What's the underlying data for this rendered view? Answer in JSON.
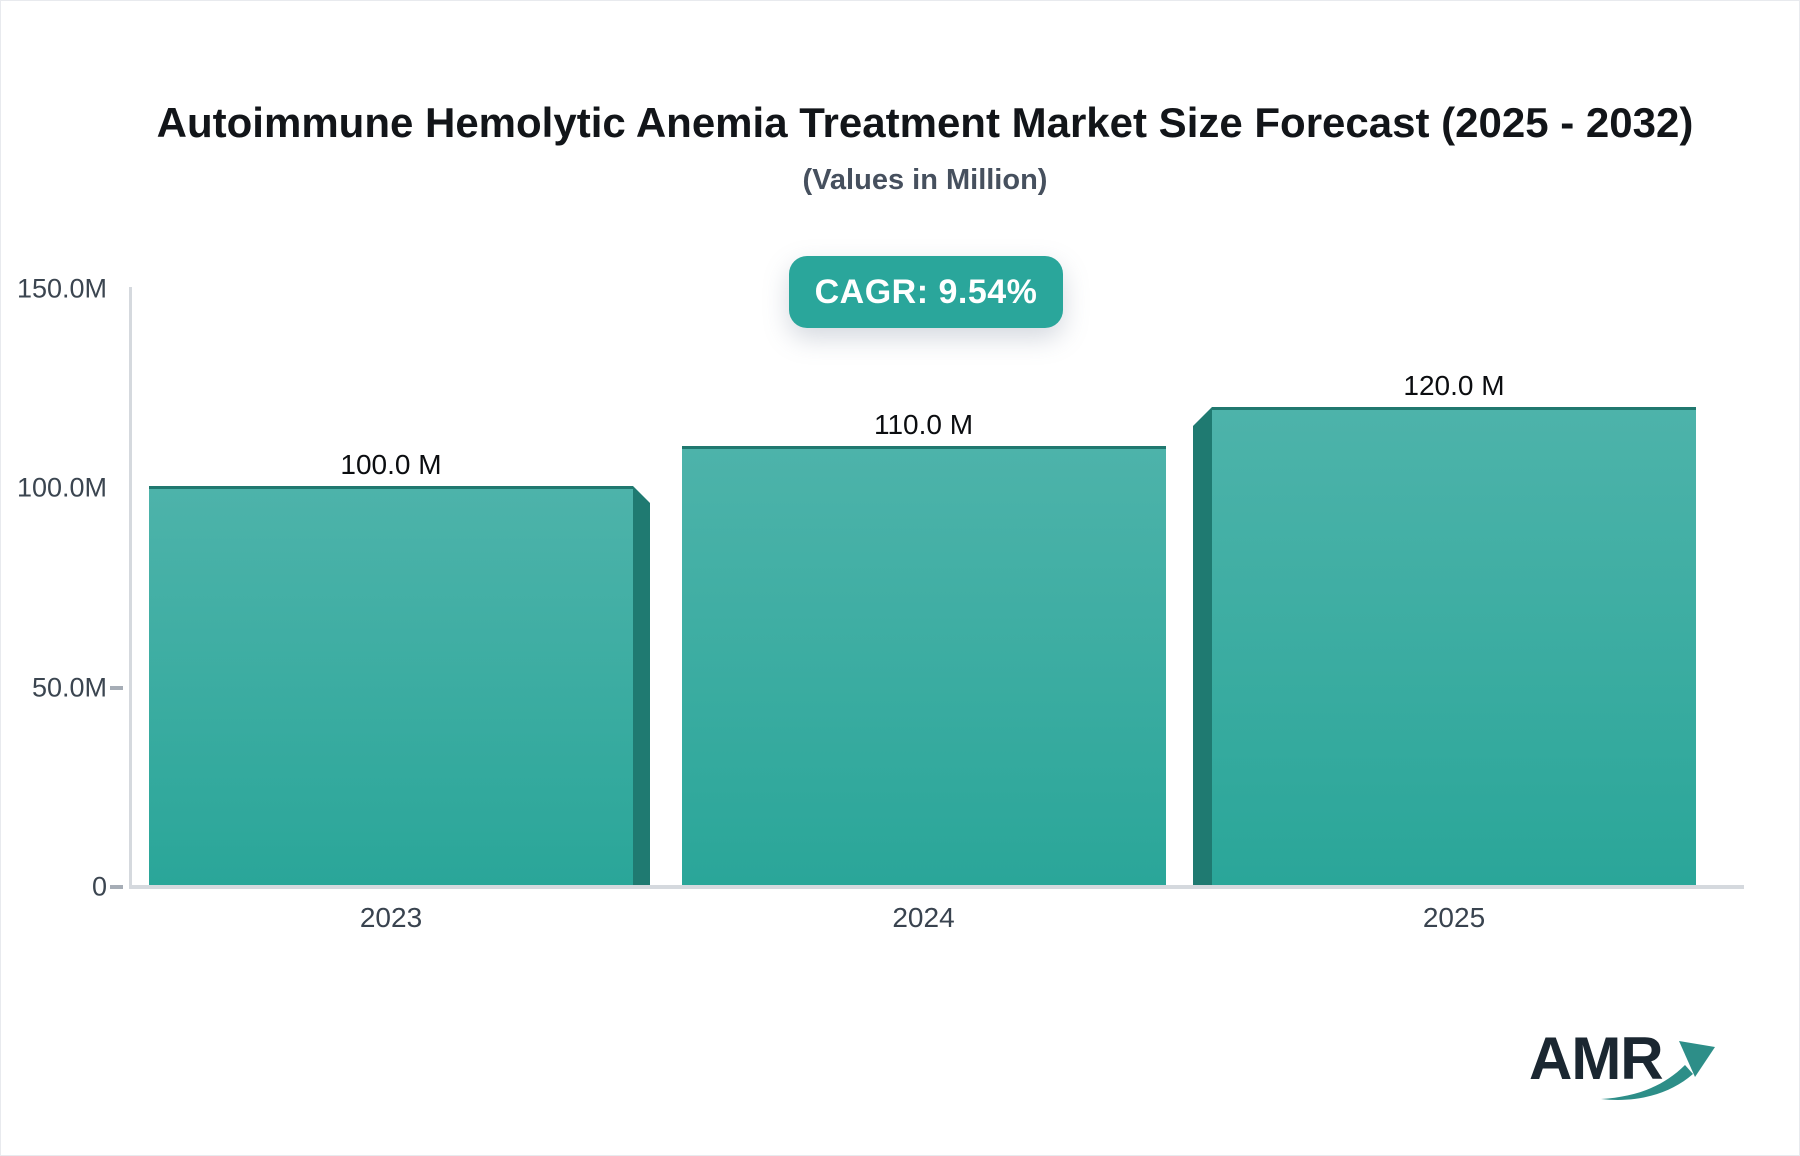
{
  "page": {
    "background": "#ffffff",
    "border_color": "#e8eaee"
  },
  "header": {
    "title": "Autoimmune Hemolytic Anemia Treatment Market Size Forecast (2025 - 2032)",
    "subtitle": "(Values in Million)"
  },
  "badge": {
    "label": "CAGR: 9.54%",
    "background": "#2aa69b",
    "text_color": "#ffffff"
  },
  "chart_data": {
    "type": "bar",
    "title": "Autoimmune Hemolytic Anemia Treatment Market Size Forecast (2025 - 2032)",
    "subtitle": "(Values in Million)",
    "unit": "Million",
    "cagr_percent": 9.54,
    "categories": [
      "2023",
      "2024",
      "2025"
    ],
    "values": [
      100.0,
      110.0,
      120.0
    ],
    "value_labels": [
      "100.0 M",
      "110.0 M",
      "120.0 M"
    ],
    "ylim": [
      0,
      150
    ],
    "y_ticks": [
      {
        "label": "150.0M",
        "value": 150,
        "has_dash": false
      },
      {
        "label": "100.0M",
        "value": 100,
        "has_dash": false
      },
      {
        "label": "50.0M",
        "value": 50,
        "has_dash": true
      },
      {
        "label": "0",
        "value": 0,
        "has_dash": true
      }
    ],
    "grid": false,
    "legend": false,
    "bar_color_top": "#4db3aa",
    "bar_color_bottom": "#2aa699",
    "bar_top_edge_color": "#20786f",
    "bar_side_color": "#1f7a71",
    "axis_color": "#d5d9de"
  },
  "logo": {
    "text": "AMR",
    "arrow_icon": "trend-up-arrow",
    "text_color": "#1b2731",
    "arrow_color": "#2d8e88"
  }
}
